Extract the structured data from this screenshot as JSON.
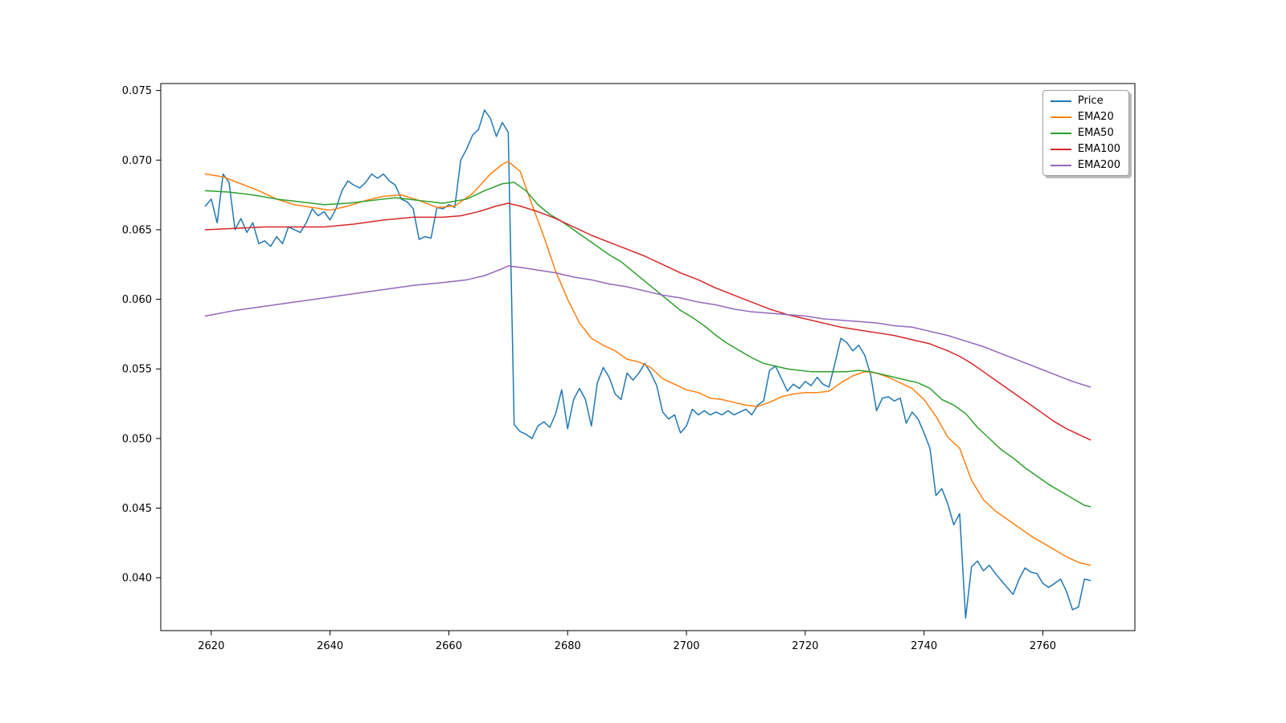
{
  "figure": {
    "background": "#ffffff",
    "axis_color": "#000000",
    "tick_label_color": "#000000"
  },
  "chart_data": {
    "type": "line",
    "title": "",
    "xlabel": "",
    "ylabel": "",
    "grid": false,
    "xlim": [
      2611.5,
      2775.5
    ],
    "ylim": [
      0.0362,
      0.0755
    ],
    "xticks": [
      2620,
      2640,
      2660,
      2680,
      2700,
      2720,
      2740,
      2760
    ],
    "xtick_labels": [
      "2620",
      "2640",
      "2660",
      "2680",
      "2700",
      "2720",
      "2740",
      "2760"
    ],
    "yticks": [
      0.04,
      0.045,
      0.05,
      0.055,
      0.06,
      0.065,
      0.07,
      0.075
    ],
    "ytick_labels": [
      "0.040",
      "0.045",
      "0.050",
      "0.055",
      "0.060",
      "0.065",
      "0.070",
      "0.075"
    ],
    "legend": {
      "position": "upper right",
      "entries": [
        "Price",
        "EMA20",
        "EMA50",
        "EMA100",
        "EMA200"
      ]
    },
    "series": [
      {
        "name": "Price",
        "color": "#1f77b4",
        "x_start": 2619,
        "x_step": 1,
        "y": [
          0.0667,
          0.0672,
          0.0655,
          0.069,
          0.0684,
          0.065,
          0.0658,
          0.0648,
          0.0655,
          0.064,
          0.0642,
          0.0638,
          0.0645,
          0.064,
          0.0652,
          0.065,
          0.0648,
          0.0655,
          0.0665,
          0.066,
          0.0663,
          0.0657,
          0.0665,
          0.0678,
          0.0685,
          0.0682,
          0.068,
          0.0684,
          0.069,
          0.0687,
          0.069,
          0.0685,
          0.0682,
          0.0672,
          0.067,
          0.0665,
          0.0643,
          0.0645,
          0.0644,
          0.0666,
          0.0665,
          0.0668,
          0.0666,
          0.07,
          0.0708,
          0.0718,
          0.0722,
          0.0736,
          0.073,
          0.0717,
          0.0727,
          0.072,
          0.051,
          0.0505,
          0.0503,
          0.05,
          0.0509,
          0.0512,
          0.0508,
          0.0518,
          0.0535,
          0.0507,
          0.0528,
          0.0536,
          0.0528,
          0.0509,
          0.054,
          0.0551,
          0.0544,
          0.0532,
          0.0528,
          0.0547,
          0.0542,
          0.0547,
          0.0554,
          0.0547,
          0.0538,
          0.0519,
          0.0514,
          0.0517,
          0.0504,
          0.0509,
          0.0521,
          0.0517,
          0.052,
          0.0517,
          0.0519,
          0.0517,
          0.052,
          0.0517,
          0.0519,
          0.0521,
          0.0517,
          0.0524,
          0.0527,
          0.0549,
          0.0552,
          0.0543,
          0.0534,
          0.0539,
          0.0536,
          0.0541,
          0.0538,
          0.0544,
          0.0539,
          0.0537,
          0.0554,
          0.0572,
          0.0569,
          0.0563,
          0.0567,
          0.056,
          0.0546,
          0.052,
          0.0529,
          0.053,
          0.0527,
          0.0529,
          0.0511,
          0.0519,
          0.0514,
          0.0504,
          0.0493,
          0.0459,
          0.0464,
          0.0453,
          0.0438,
          0.0446,
          0.0371,
          0.0408,
          0.0412,
          0.0405,
          0.0409,
          0.0403,
          0.0398,
          0.0393,
          0.0388,
          0.0399,
          0.0407,
          0.0404,
          0.0403,
          0.0396,
          0.0393,
          0.0396,
          0.0399,
          0.039,
          0.0377,
          0.0379,
          0.0399,
          0.0398
        ]
      },
      {
        "name": "EMA20",
        "color": "#ff7f0e",
        "x": [
          2619,
          2622,
          2625,
          2628,
          2631,
          2634,
          2637,
          2640,
          2643,
          2646,
          2649,
          2652,
          2655,
          2658,
          2661,
          2664,
          2667,
          2669,
          2670,
          2672,
          2674,
          2676,
          2678,
          2680,
          2682,
          2684,
          2686,
          2688,
          2690,
          2692,
          2694,
          2696,
          2698,
          2700,
          2702,
          2704,
          2706,
          2708,
          2710,
          2712,
          2714,
          2716,
          2718,
          2720,
          2722,
          2724,
          2726,
          2728,
          2730,
          2732,
          2734,
          2736,
          2738,
          2740,
          2742,
          2744,
          2746,
          2748,
          2750,
          2752,
          2754,
          2756,
          2758,
          2760,
          2762,
          2764,
          2766,
          2768
        ],
        "y": [
          0.069,
          0.0688,
          0.0683,
          0.0678,
          0.0672,
          0.0668,
          0.0666,
          0.0664,
          0.0667,
          0.0671,
          0.0674,
          0.0675,
          0.0671,
          0.0666,
          0.0667,
          0.0676,
          0.069,
          0.0697,
          0.0699,
          0.0692,
          0.0668,
          0.0645,
          0.062,
          0.06,
          0.0583,
          0.0572,
          0.0567,
          0.0563,
          0.0557,
          0.0555,
          0.0551,
          0.0543,
          0.0539,
          0.0535,
          0.0533,
          0.0529,
          0.0528,
          0.0526,
          0.0524,
          0.0523,
          0.0526,
          0.053,
          0.0532,
          0.0533,
          0.0533,
          0.0534,
          0.054,
          0.0545,
          0.0548,
          0.0547,
          0.0544,
          0.054,
          0.0536,
          0.0528,
          0.0516,
          0.0501,
          0.0493,
          0.047,
          0.0456,
          0.0448,
          0.0442,
          0.0436,
          0.043,
          0.0425,
          0.042,
          0.0415,
          0.0411,
          0.0409
        ]
      },
      {
        "name": "EMA50",
        "color": "#2ca02c",
        "x": [
          2619,
          2623,
          2627,
          2631,
          2635,
          2639,
          2643,
          2647,
          2651,
          2655,
          2659,
          2663,
          2666,
          2669,
          2671,
          2673,
          2675,
          2677,
          2679,
          2681,
          2683,
          2685,
          2687,
          2689,
          2691,
          2693,
          2695,
          2697,
          2699,
          2701,
          2703,
          2705,
          2707,
          2709,
          2711,
          2713,
          2715,
          2717,
          2719,
          2721,
          2723,
          2725,
          2727,
          2729,
          2731,
          2733,
          2735,
          2737,
          2739,
          2741,
          2743,
          2745,
          2747,
          2749,
          2751,
          2753,
          2755,
          2757,
          2759,
          2761,
          2763,
          2765,
          2767,
          2768
        ],
        "y": [
          0.0678,
          0.0677,
          0.0675,
          0.0672,
          0.067,
          0.0668,
          0.0669,
          0.0671,
          0.0673,
          0.0671,
          0.0669,
          0.0672,
          0.0678,
          0.0683,
          0.0684,
          0.0678,
          0.0668,
          0.0661,
          0.0656,
          0.065,
          0.0644,
          0.0638,
          0.0632,
          0.0627,
          0.062,
          0.0613,
          0.0606,
          0.0599,
          0.0592,
          0.0587,
          0.0581,
          0.0574,
          0.0568,
          0.0563,
          0.0558,
          0.0554,
          0.0552,
          0.055,
          0.0549,
          0.0548,
          0.0548,
          0.0548,
          0.0548,
          0.0549,
          0.0548,
          0.0546,
          0.0544,
          0.0542,
          0.054,
          0.0536,
          0.0528,
          0.0524,
          0.0518,
          0.0508,
          0.05,
          0.0492,
          0.0486,
          0.0479,
          0.0473,
          0.0467,
          0.0462,
          0.0457,
          0.0452,
          0.0451
        ]
      },
      {
        "name": "EMA100",
        "color": "#d62728",
        "x": [
          2619,
          2624,
          2629,
          2634,
          2639,
          2644,
          2649,
          2654,
          2659,
          2662,
          2665,
          2668,
          2670,
          2672,
          2675,
          2678,
          2681,
          2684,
          2687,
          2690,
          2693,
          2696,
          2699,
          2702,
          2705,
          2708,
          2711,
          2714,
          2717,
          2720,
          2723,
          2726,
          2729,
          2732,
          2735,
          2738,
          2741,
          2744,
          2746,
          2748,
          2750,
          2752,
          2754,
          2756,
          2758,
          2760,
          2762,
          2764,
          2766,
          2768
        ],
        "y": [
          0.065,
          0.0651,
          0.0652,
          0.0652,
          0.0652,
          0.0654,
          0.0657,
          0.0659,
          0.0659,
          0.066,
          0.0663,
          0.0667,
          0.0669,
          0.0667,
          0.0663,
          0.0658,
          0.0652,
          0.0646,
          0.0641,
          0.0636,
          0.0631,
          0.0625,
          0.0619,
          0.0614,
          0.0608,
          0.0603,
          0.0598,
          0.0593,
          0.0589,
          0.0586,
          0.0583,
          0.058,
          0.0578,
          0.0576,
          0.0574,
          0.0571,
          0.0568,
          0.0563,
          0.0559,
          0.0554,
          0.0548,
          0.0542,
          0.0536,
          0.053,
          0.0524,
          0.0518,
          0.0512,
          0.0507,
          0.0503,
          0.0499
        ]
      },
      {
        "name": "EMA200",
        "color": "#9467bd",
        "x": [
          2619,
          2624,
          2629,
          2634,
          2639,
          2644,
          2649,
          2654,
          2659,
          2663,
          2666,
          2669,
          2670,
          2672,
          2675,
          2678,
          2681,
          2684,
          2687,
          2690,
          2693,
          2696,
          2699,
          2702,
          2705,
          2708,
          2711,
          2714,
          2717,
          2720,
          2723,
          2726,
          2729,
          2732,
          2735,
          2738,
          2741,
          2744,
          2747,
          2750,
          2753,
          2756,
          2759,
          2762,
          2765,
          2768
        ],
        "y": [
          0.0588,
          0.0592,
          0.0595,
          0.0598,
          0.0601,
          0.0604,
          0.0607,
          0.061,
          0.0612,
          0.0614,
          0.0617,
          0.0622,
          0.0624,
          0.0623,
          0.0621,
          0.0619,
          0.0616,
          0.0614,
          0.0611,
          0.0609,
          0.0606,
          0.0603,
          0.0601,
          0.0598,
          0.0596,
          0.0593,
          0.0591,
          0.059,
          0.0589,
          0.0588,
          0.0586,
          0.0585,
          0.0584,
          0.0583,
          0.0581,
          0.058,
          0.0577,
          0.0574,
          0.057,
          0.0566,
          0.0561,
          0.0556,
          0.0551,
          0.0546,
          0.0541,
          0.0537
        ]
      }
    ]
  }
}
